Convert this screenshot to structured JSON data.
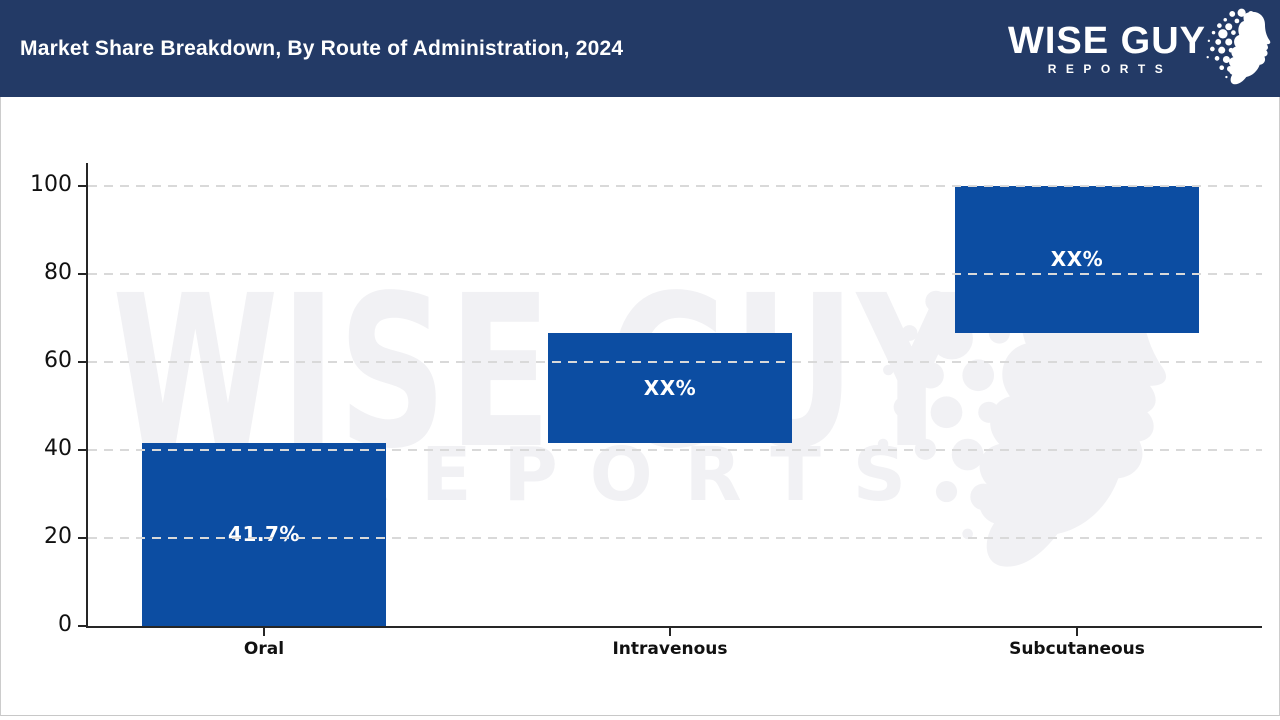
{
  "header": {
    "title": "Market Share Breakdown, By Route of Administration, 2024",
    "bg_color": "#233a66",
    "logo": {
      "line1": "WISE GUY",
      "line2": "REPORTS"
    }
  },
  "watermark": {
    "line1": "WISE GUY",
    "line2": "REPORTS"
  },
  "chart_data": {
    "type": "bar",
    "subtype": "waterfall-stacked",
    "title": "Market Share Breakdown, By Route of Administration, 2024",
    "categories": [
      "Oral",
      "Intravenous",
      "Subcutaneous"
    ],
    "segments": [
      {
        "category": "Oral",
        "start": 0,
        "end": 41.7,
        "label": "41.7%"
      },
      {
        "category": "Intravenous",
        "start": 41.7,
        "end": 66.7,
        "label": "XX%"
      },
      {
        "category": "Subcutaneous",
        "start": 66.7,
        "end": 100,
        "label": "XX%"
      }
    ],
    "values_displayed": [
      "41.7%",
      "XX%",
      "XX%"
    ],
    "y_ticks": [
      0,
      20,
      40,
      60,
      80,
      100
    ],
    "ylim": [
      0,
      100
    ],
    "xlabel": "",
    "ylabel": "",
    "grid": "horizontal-dashed",
    "legend": "none",
    "colors": {
      "bar": "#0c4da2",
      "grid": "#d9d9d9",
      "axis": "#262626",
      "watermark": "#f1f1f4",
      "header_bg": "#233a66"
    }
  }
}
